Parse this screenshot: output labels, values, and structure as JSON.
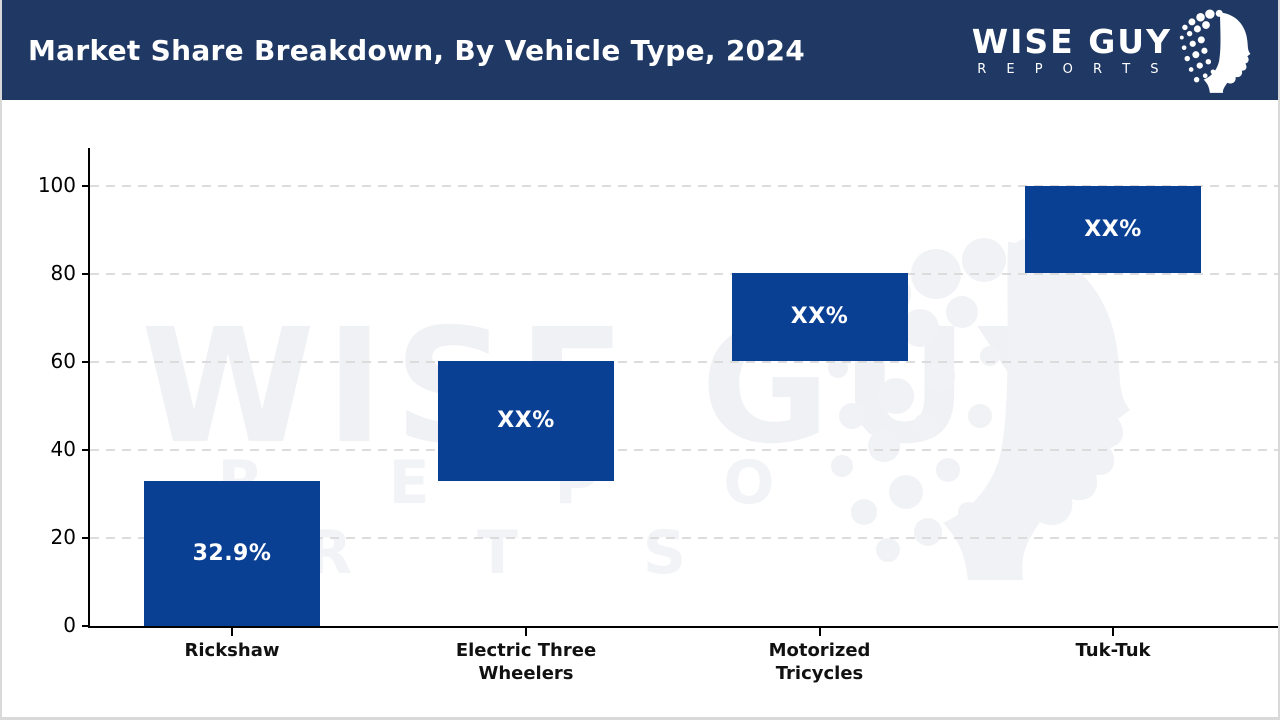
{
  "header": {
    "title": "Market Share Breakdown, By Vehicle Type, 2024",
    "logo": {
      "name": "WISE GUY",
      "tagline": "R E P O R T S"
    }
  },
  "watermark": {
    "line1": "WISE GUY",
    "line2": "R E P O R T S"
  },
  "chart_data": {
    "type": "bar",
    "subtype": "waterfall-breakdown",
    "title": "Market Share Breakdown, By Vehicle Type, 2024",
    "categories": [
      "Rickshaw",
      "Electric Three Wheelers",
      "Motorized Tricycles",
      "Tuk-Tuk"
    ],
    "segments": [
      {
        "category": "Rickshaw",
        "start": 0,
        "end": 32.9,
        "label": "32.9%"
      },
      {
        "category": "Electric Three Wheelers",
        "start": 32.9,
        "end": 60.3,
        "label": "XX%"
      },
      {
        "category": "Motorized Tricycles",
        "start": 60.3,
        "end": 80.2,
        "label": "XX%"
      },
      {
        "category": "Tuk-Tuk",
        "start": 80.2,
        "end": 100,
        "label": "XX%"
      }
    ],
    "y_ticks": [
      0,
      20,
      40,
      60,
      80,
      100
    ],
    "ylim": [
      0,
      109
    ],
    "xlabel": "",
    "ylabel": "",
    "grid": "horizontal-dashed",
    "legend": "none",
    "bar_color": "#0a4094",
    "bar_label_color": "#ffffff"
  },
  "colors": {
    "header_bg": "#1f3864",
    "bar": "#0a4094",
    "grid": "#dcdcdc",
    "axis": "#000000",
    "watermark": "#f0f1f4",
    "page_border": "#d9d9d9"
  }
}
